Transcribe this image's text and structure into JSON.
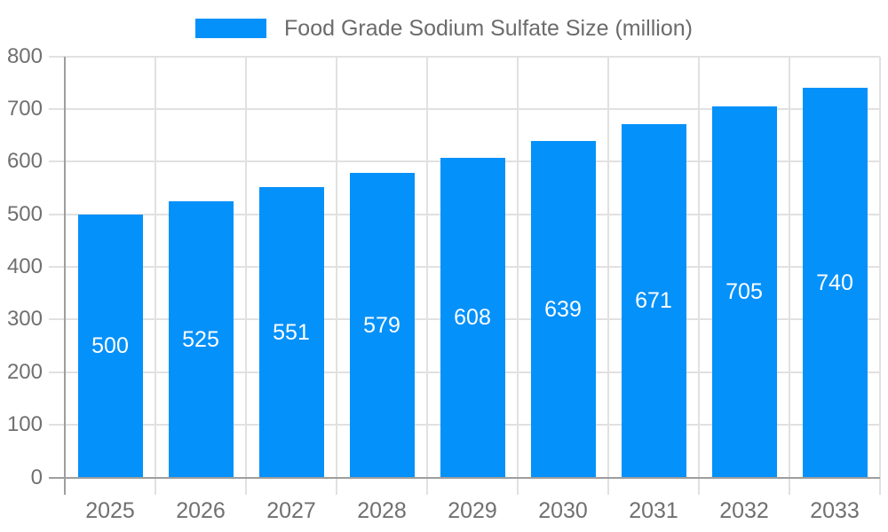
{
  "chart_data": {
    "type": "bar",
    "title": "",
    "legend": {
      "label": "Food Grade Sodium Sulfate Size (million)",
      "position": "top"
    },
    "categories": [
      "2025",
      "2026",
      "2027",
      "2028",
      "2029",
      "2030",
      "2031",
      "2032",
      "2033"
    ],
    "values": [
      500,
      525,
      551,
      579,
      608,
      639,
      671,
      705,
      740
    ],
    "xlabel": "",
    "ylabel": "",
    "ylim": [
      0,
      800
    ],
    "yticks": [
      0,
      100,
      200,
      300,
      400,
      500,
      600,
      700,
      800
    ],
    "grid": true,
    "value_labels_position": "inside-center",
    "colors": {
      "bar": "#0591fa",
      "value_label": "#ffffff",
      "tick_label": "#707070",
      "legend_text": "#6b6b6b",
      "axis_line": "#9e9e9e",
      "grid_line": "#e1e1e1"
    }
  }
}
